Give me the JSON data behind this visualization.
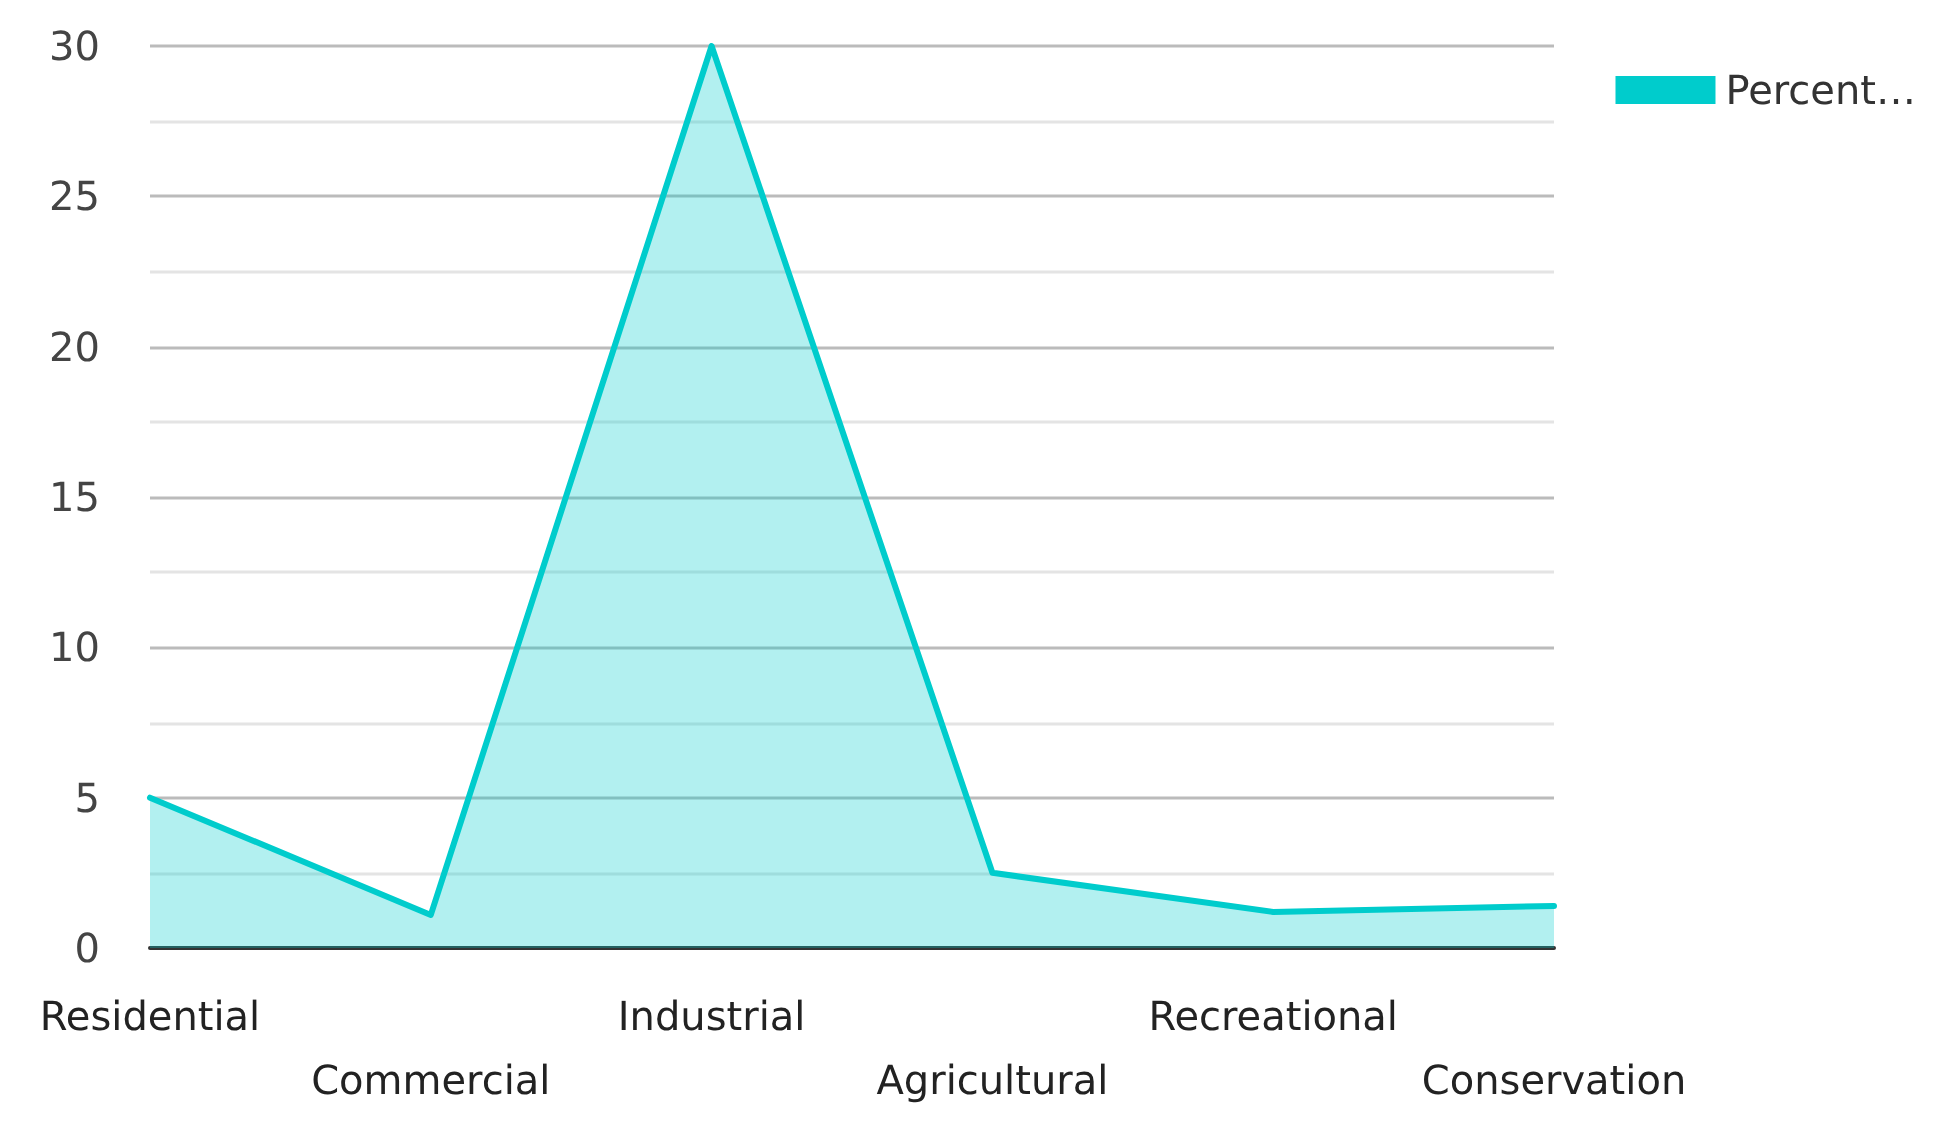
{
  "chart_data": {
    "type": "area",
    "categories": [
      "Residential",
      "Commercial",
      "Industrial",
      "Agricultural",
      "Recreational",
      "Conservation"
    ],
    "series": [
      {
        "name": "Percent…",
        "color": "#00cccc",
        "values": [
          5,
          1.1,
          30,
          2.5,
          1.2,
          1.4
        ]
      }
    ],
    "ylim": [
      0,
      30
    ],
    "yticks": [
      0,
      5,
      10,
      15,
      20,
      25,
      30
    ],
    "grid": "y",
    "legend": "top right",
    "marker": "none",
    "line_style": "solid"
  }
}
